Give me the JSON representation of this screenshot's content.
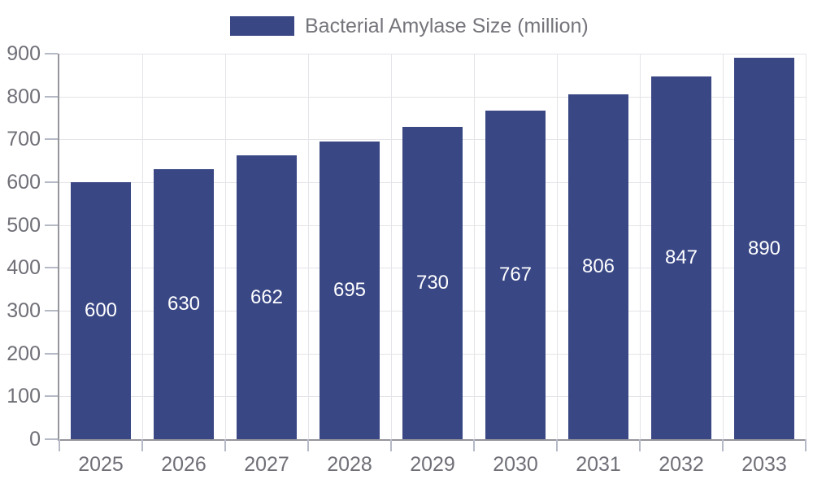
{
  "legend": {
    "label": "Bacterial Amylase Size (million)"
  },
  "colors": {
    "bar": "#394785",
    "bar_label": "#ffffff",
    "axis_text": "#6f7077",
    "legend_text": "#74757b",
    "grid_line": "#e4e4e9",
    "axis_line": "#95959c",
    "tick": "#b6bac6",
    "background": "#ffffff"
  },
  "chart_data": {
    "type": "bar",
    "title": "Bacterial Amylase Size (million)",
    "categories": [
      "2025",
      "2026",
      "2027",
      "2028",
      "2029",
      "2030",
      "2031",
      "2032",
      "2033"
    ],
    "values": [
      600,
      630,
      662,
      695,
      730,
      767,
      806,
      847,
      890
    ],
    "series": [
      {
        "name": "Bacterial Amylase Size (million)",
        "values": [
          600,
          630,
          662,
          695,
          730,
          767,
          806,
          847,
          890
        ]
      }
    ],
    "xlabel": "",
    "ylabel": "",
    "ylim": [
      0,
      900
    ],
    "yticks": [
      0,
      100,
      200,
      300,
      400,
      500,
      600,
      700,
      800,
      900
    ],
    "grid": true,
    "legend_position": "top",
    "value_label_position": "inside-center"
  }
}
